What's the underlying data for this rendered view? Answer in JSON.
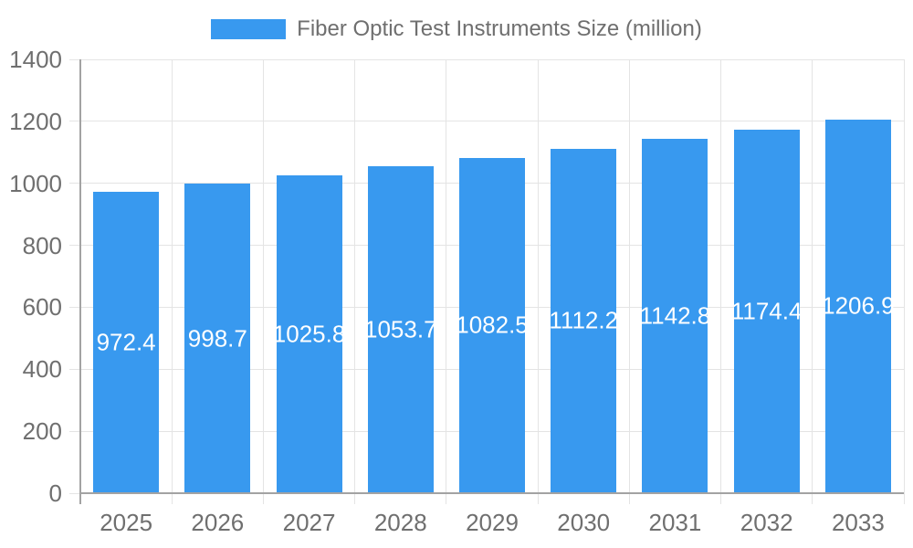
{
  "legend": {
    "label": "Fiber Optic Test Instruments Size (million)"
  },
  "colors": {
    "bar": "#3899EF",
    "grid": "#E4E4E4",
    "axis": "#A3A3A3",
    "tick_text": "#6F6F6F",
    "bar_label_text": "#FFFFFF",
    "background": "#FFFFFF"
  },
  "chart_data": {
    "type": "bar",
    "title": "Fiber Optic Test Instruments Size (million)",
    "categories": [
      "2025",
      "2026",
      "2027",
      "2028",
      "2029",
      "2030",
      "2031",
      "2032",
      "2033"
    ],
    "values": [
      972.4,
      998.7,
      1025.8,
      1053.7,
      1082.5,
      1112.2,
      1142.8,
      1174.4,
      1206.9
    ],
    "series_name": "Fiber Optic Test Instruments Size (million)",
    "xlabel": "",
    "ylabel": "",
    "ylim": [
      0,
      1400
    ],
    "ytick_step": 200,
    "yticks": [
      0,
      200,
      400,
      600,
      800,
      1000,
      1200,
      1400
    ],
    "grid": true,
    "legend_position": "top",
    "value_labels": "inside-center"
  }
}
